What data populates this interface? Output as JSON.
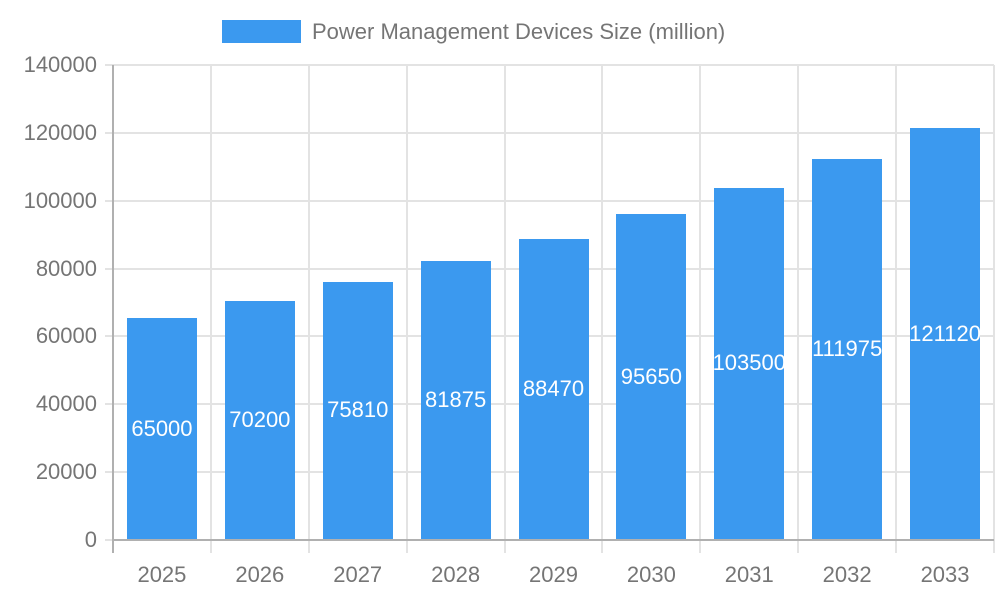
{
  "chart_data": {
    "type": "bar",
    "title": "Power Management Devices Size (million)",
    "categories": [
      "2025",
      "2026",
      "2027",
      "2028",
      "2029",
      "2030",
      "2031",
      "2032",
      "2033"
    ],
    "values": [
      65000,
      70200,
      75810,
      81875,
      88470,
      95650,
      103500,
      111975,
      121120
    ],
    "xlabel": "",
    "ylabel": "",
    "ylim": [
      0,
      140000
    ],
    "yticks": [
      0,
      20000,
      40000,
      60000,
      80000,
      100000,
      120000,
      140000
    ],
    "ytick_labels": [
      "0",
      "20000",
      "40000",
      "60000",
      "80000",
      "100000",
      "120000",
      "140000"
    ],
    "grid": true,
    "legend_position": "top-center",
    "bar_labels_visible": true,
    "colors": {
      "bar": "#3b99ef",
      "bar_label": "#ffffff",
      "grid": "#e3e3e3",
      "axis": "#b0b0b0",
      "tick_text": "#757575",
      "legend_text": "#757575",
      "background": "#ffffff"
    }
  }
}
